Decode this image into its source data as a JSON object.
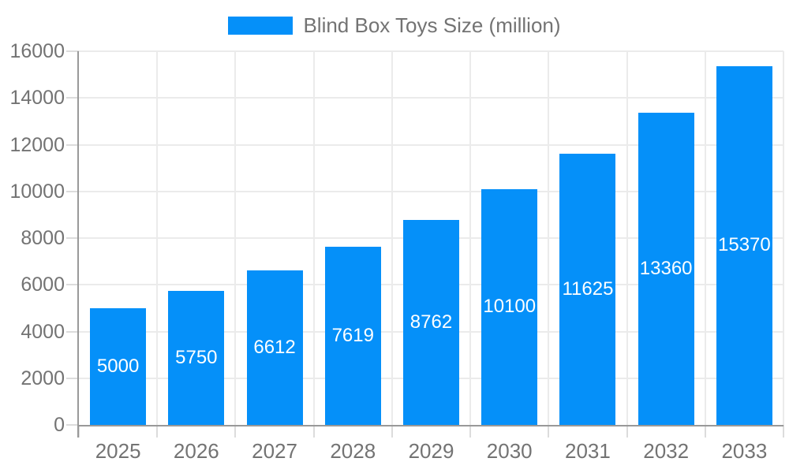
{
  "legend": {
    "label": "Blind Box Toys Size (million)"
  },
  "chart_data": {
    "type": "bar",
    "title": "Blind Box Toys Size (million)",
    "categories": [
      "2025",
      "2026",
      "2027",
      "2028",
      "2029",
      "2030",
      "2031",
      "2032",
      "2033"
    ],
    "series": [
      {
        "name": "Blind Box Toys Size (million)",
        "values": [
          5000,
          5750,
          6612,
          7619,
          8762,
          10100,
          11625,
          13360,
          15370
        ]
      }
    ],
    "values": [
      5000,
      5750,
      6612,
      7619,
      8762,
      10100,
      11625,
      13360,
      15370
    ],
    "xlabel": "",
    "ylabel": "",
    "ylim": [
      0,
      16000
    ],
    "yticks": [
      0,
      2000,
      4000,
      6000,
      8000,
      10000,
      12000,
      14000,
      16000
    ],
    "grid": true,
    "bar_labels_inside": true,
    "legend_position": "top-center",
    "colors": {
      "bar": "#0590f9",
      "bar_label": "#ffffff",
      "axis_text": "#737373",
      "axis_line": "#999999",
      "grid_line": "#ebebeb",
      "tick_line": "#dcdcdc",
      "background": "#ffffff"
    }
  }
}
